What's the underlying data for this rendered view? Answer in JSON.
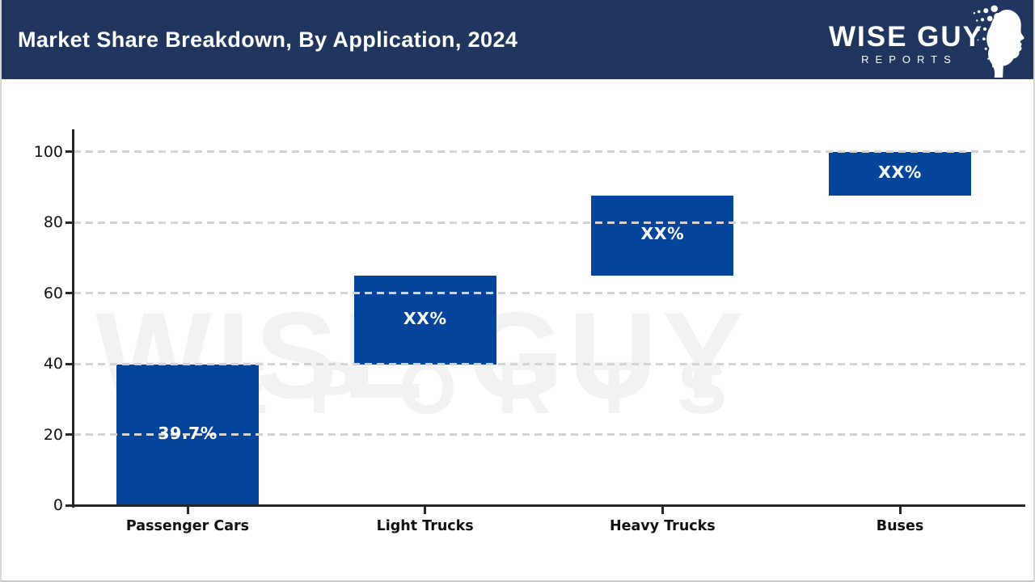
{
  "header": {
    "title": "Market Share Breakdown, By Application, 2024",
    "bg_color": "#21365F"
  },
  "logo": {
    "name_line": "WISE GUY",
    "reports_line": "REPORTS"
  },
  "watermark": {
    "name_line": "WISE GUY",
    "reports_line": "REPORTS"
  },
  "chart_data": {
    "type": "bar",
    "variant": "waterfall",
    "title": "Market Share Breakdown, By Application, 2024",
    "categories": [
      "Passenger Cars",
      "Light Trucks",
      "Heavy Trucks",
      "Buses"
    ],
    "segments": [
      {
        "category": "Passenger Cars",
        "start": 0,
        "end": 39.7,
        "label": "39.7%"
      },
      {
        "category": "Light Trucks",
        "start": 39.7,
        "end": 65,
        "label": "XX%"
      },
      {
        "category": "Heavy Trucks",
        "start": 65,
        "end": 87.5,
        "label": "XX%"
      },
      {
        "category": "Buses",
        "start": 87.5,
        "end": 100,
        "label": "XX%"
      }
    ],
    "xlabel": "",
    "ylabel": "",
    "ylim": [
      0,
      106
    ],
    "yticks": [
      0,
      20,
      40,
      60,
      80,
      100
    ],
    "grid": "horizontal-dashed",
    "legend": "none",
    "bar_color": "#05449B",
    "bar_label_color": "#FFFFFF",
    "axis_color": "#262626",
    "gridline_color": "#D3D3D3"
  }
}
